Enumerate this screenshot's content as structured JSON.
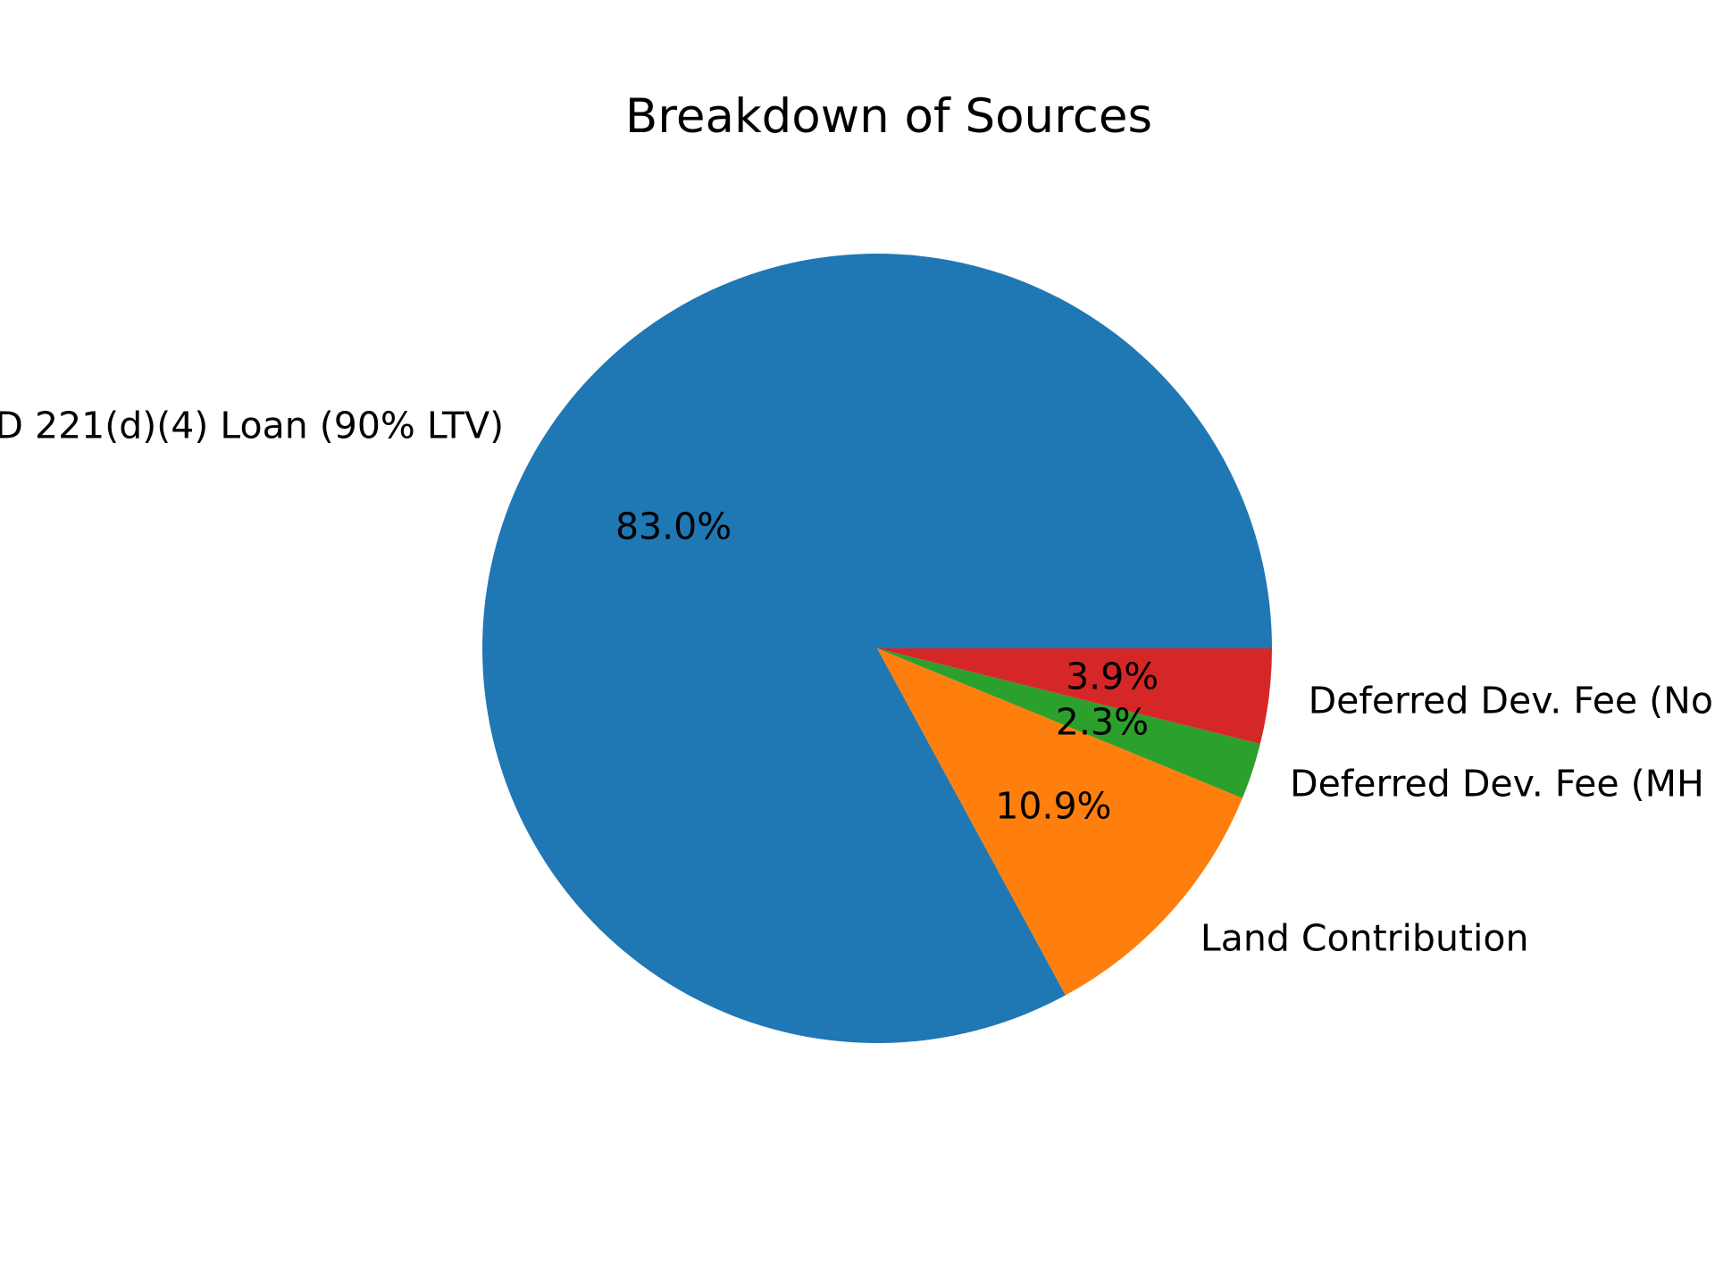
{
  "chart_data": {
    "type": "pie",
    "title": "Breakdown of Sources",
    "background_color": "#ffffff",
    "text_color": "#000000",
    "start_angle_deg": 0,
    "direction": "counterclockwise",
    "label_distance": 1.1,
    "pct_distance": 0.6,
    "slices": [
      {
        "label": "D 221(d)(4) Loan (90% LTV)",
        "value": 83.0,
        "pct_label": "83.0%",
        "color": "#1f77b4"
      },
      {
        "label": "Land Contribution",
        "value": 10.9,
        "pct_label": "10.9%",
        "color": "#ff7f0e"
      },
      {
        "label": "Deferred Dev. Fee (MH",
        "value": 2.3,
        "pct_label": "2.3%",
        "color": "#2ca02c"
      },
      {
        "label": "Deferred Dev. Fee (No",
        "value": 3.9,
        "pct_label": "3.9%",
        "color": "#d62728"
      }
    ]
  }
}
